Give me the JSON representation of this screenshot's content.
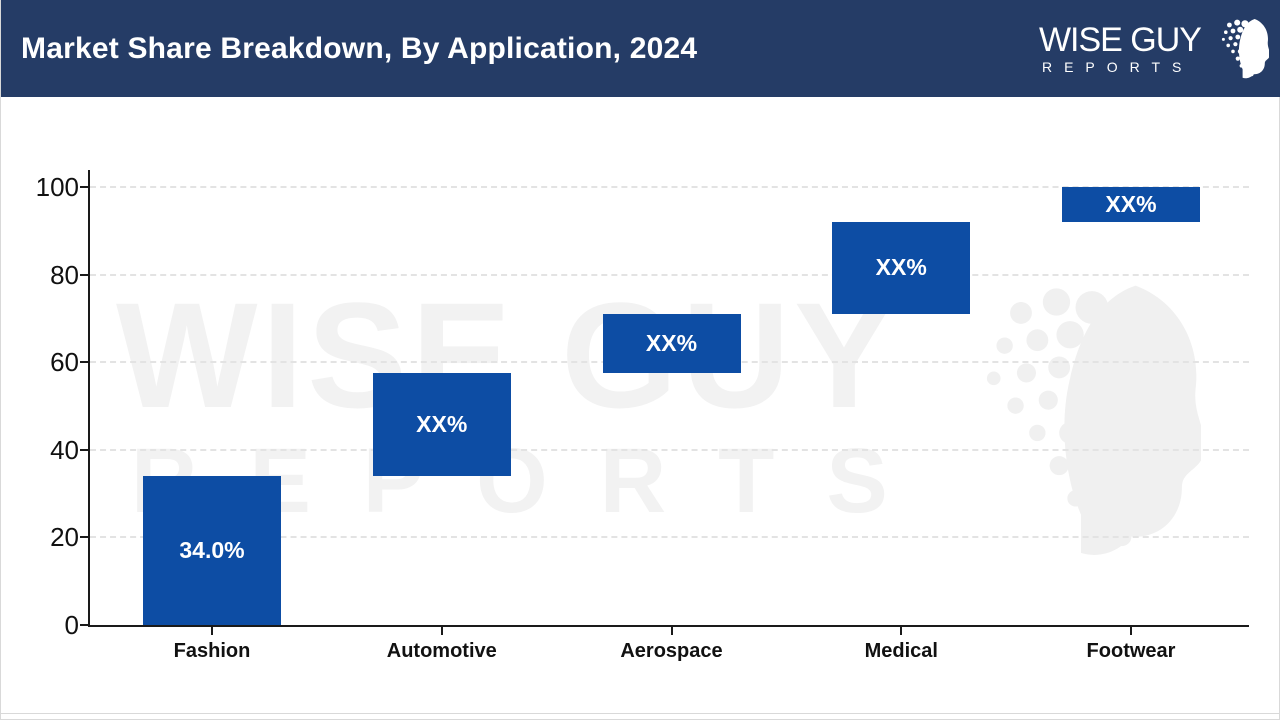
{
  "header": {
    "title": "Market Share Breakdown, By Application, 2024",
    "logo": {
      "line1": "WISE GUY",
      "line2": "REPORTS"
    }
  },
  "watermark": {
    "line1": "WISE GUY",
    "line2": "REPORTS"
  },
  "colors": {
    "header_bg": "#253C66",
    "bar": "#0D4DA4",
    "bar_label": "#FFFFFF",
    "axis": "#1A1A1A",
    "grid": "#E3E3E3",
    "watermark": "#F2F2F2",
    "frame": "#D9D9D9"
  },
  "chart_data": {
    "type": "bar",
    "variant": "waterfall",
    "title": "Market Share Breakdown, By Application, 2024",
    "categories": [
      "Fashion",
      "Automotive",
      "Aerospace",
      "Medical",
      "Footwear"
    ],
    "segments": [
      {
        "category": "Fashion",
        "start": 0,
        "end": 34,
        "label": "34.0%"
      },
      {
        "category": "Automotive",
        "start": 34,
        "end": 57.5,
        "label": "XX%"
      },
      {
        "category": "Aerospace",
        "start": 57.5,
        "end": 71,
        "label": "XX%"
      },
      {
        "category": "Medical",
        "start": 71,
        "end": 92,
        "label": "XX%"
      },
      {
        "category": "Footwear",
        "start": 92,
        "end": 100,
        "label": "XX%"
      }
    ],
    "yticks": [
      0,
      20,
      40,
      60,
      80,
      100
    ],
    "ylim": [
      0,
      105
    ],
    "xlabel": "",
    "ylabel": "",
    "grid": "horizontal-dashed",
    "legend": "none"
  }
}
